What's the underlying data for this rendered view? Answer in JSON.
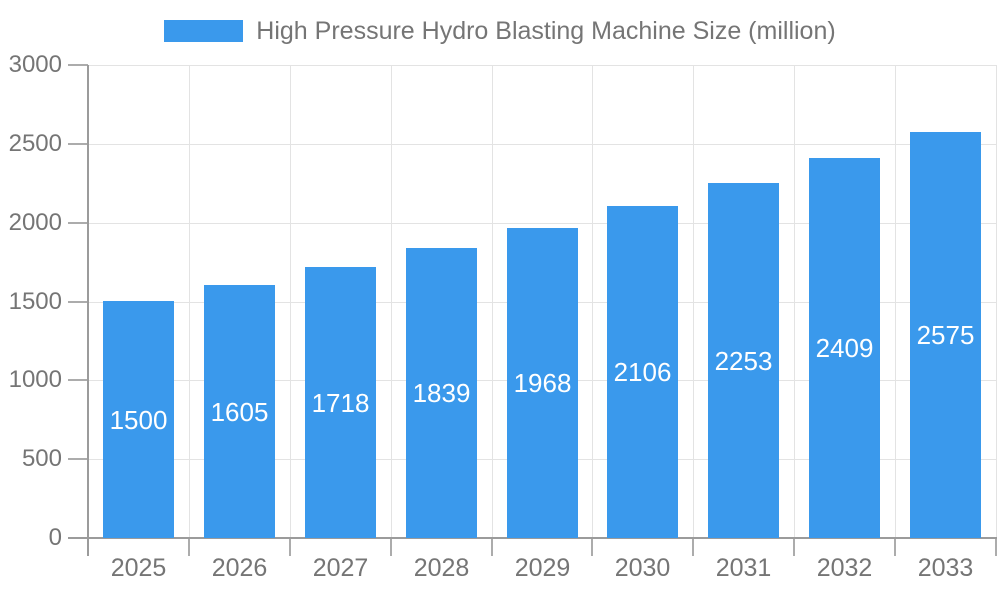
{
  "legend": {
    "label": "High Pressure Hydro Blasting Machine Size (million)"
  },
  "chart_data": {
    "type": "bar",
    "title": "High Pressure Hydro Blasting Machine Size (million)",
    "categories": [
      "2025",
      "2026",
      "2027",
      "2028",
      "2029",
      "2030",
      "2031",
      "2032",
      "2033"
    ],
    "values": [
      1500,
      1605,
      1718,
      1839,
      1968,
      2106,
      2253,
      2409,
      2575
    ],
    "xlabel": "",
    "ylabel": "",
    "ylim": [
      0,
      3000
    ],
    "yticks": [
      0,
      500,
      1000,
      1500,
      2000,
      2500,
      3000
    ],
    "grid": true,
    "legend_position": "top-center",
    "value_labels": "inside-center",
    "bar_color": "#3A99EC",
    "value_label_color": "#FFFFFF",
    "axis_text_color": "#757575",
    "gridline_color": "#E3E3E3",
    "axis_line_color": "#9B9B9B",
    "background_color": "#FFFFFF"
  }
}
